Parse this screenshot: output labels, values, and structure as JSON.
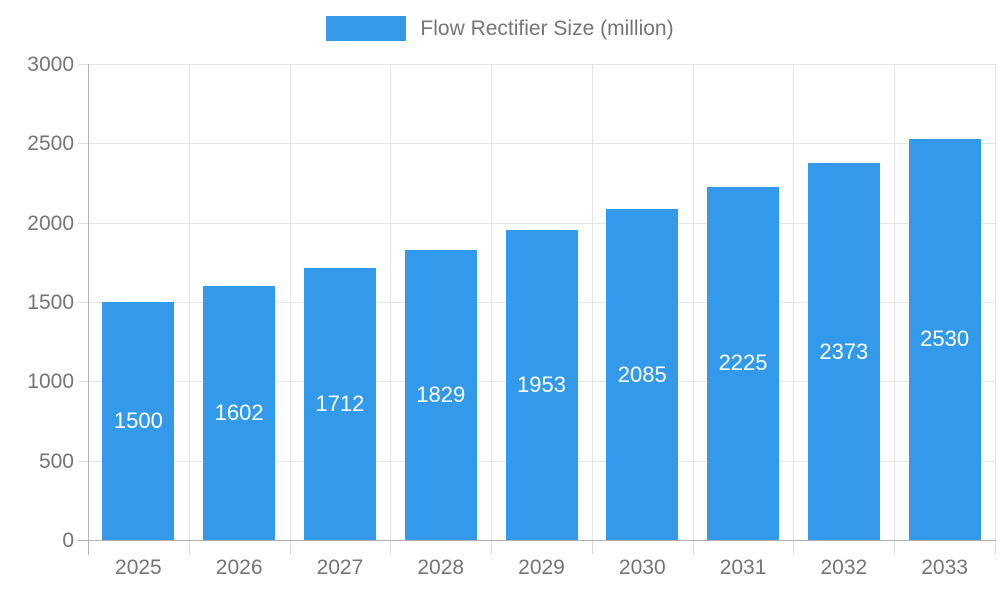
{
  "legend": {
    "label": "Flow Rectifier Size (million)",
    "swatch_color": "#3399EA"
  },
  "chart_data": {
    "type": "bar",
    "title": "Flow Rectifier Size (million)",
    "categories": [
      "2025",
      "2026",
      "2027",
      "2028",
      "2029",
      "2030",
      "2031",
      "2032",
      "2033"
    ],
    "values": [
      1500,
      1602,
      1712,
      1829,
      1953,
      2085,
      2225,
      2373,
      2530
    ],
    "value_labels": [
      "1500",
      "1602",
      "1712",
      "1829",
      "1953",
      "2085",
      "2225",
      "2373",
      "2530"
    ],
    "xlabel": "",
    "ylabel": "",
    "ylim": [
      0,
      3000
    ],
    "yticks": [
      0,
      500,
      1000,
      1500,
      2000,
      2500,
      3000
    ],
    "ytick_labels": [
      "0",
      "500",
      "1000",
      "1500",
      "2000",
      "2500",
      "3000"
    ],
    "grid": true,
    "legend_position": "top-center",
    "bar_color": "#3399EA",
    "value_label_color": "#ffffff",
    "axis_text_color": "#757575",
    "gridline_color": "#e6e6e6",
    "axis_line_color": "#b3b3b3"
  }
}
